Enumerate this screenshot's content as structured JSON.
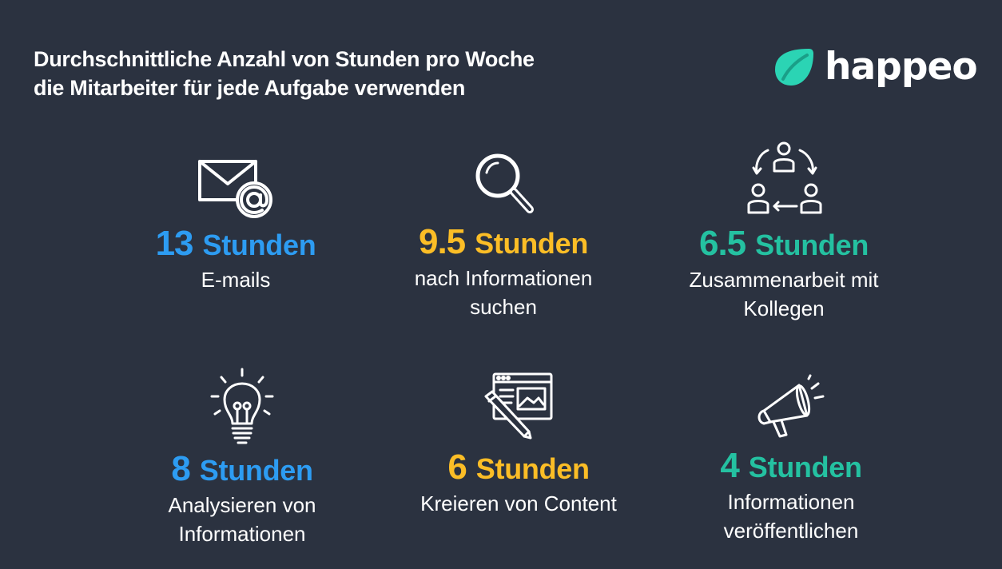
{
  "title": {
    "line1": "Durchschnittliche Anzahl von Stunden pro Woche",
    "line2": "die Mitarbeiter für jede Aufgabe verwenden"
  },
  "logo": {
    "text": "happeo",
    "colors": {
      "leaf": "#2bd4b4",
      "text": "#ffffff"
    }
  },
  "colors": {
    "background": "#2b3240",
    "blue": "#2d9cf2",
    "yellow": "#fbbd26",
    "teal": "#24c1a1"
  },
  "stats": [
    {
      "value": "13",
      "unit": "Stunden",
      "label_lines": [
        "E-mails"
      ],
      "icon": "email-at-icon"
    },
    {
      "value": "9.5",
      "unit": "Stunden",
      "label_lines": [
        "nach Informationen",
        "suchen"
      ],
      "icon": "magnifier-icon"
    },
    {
      "value": "6.5",
      "unit": "Stunden",
      "label_lines": [
        "Zusammenarbeit mit",
        "Kollegen"
      ],
      "icon": "collaboration-icon"
    },
    {
      "value": "8",
      "unit": "Stunden",
      "label_lines": [
        "Analysieren von",
        "Informationen"
      ],
      "icon": "lightbulb-icon"
    },
    {
      "value": "6",
      "unit": "Stunden",
      "label_lines": [
        "Kreieren von Content"
      ],
      "icon": "content-creation-icon"
    },
    {
      "value": "4",
      "unit": "Stunden",
      "label_lines": [
        "Informationen",
        "veröffentlichen"
      ],
      "icon": "megaphone-icon"
    }
  ]
}
